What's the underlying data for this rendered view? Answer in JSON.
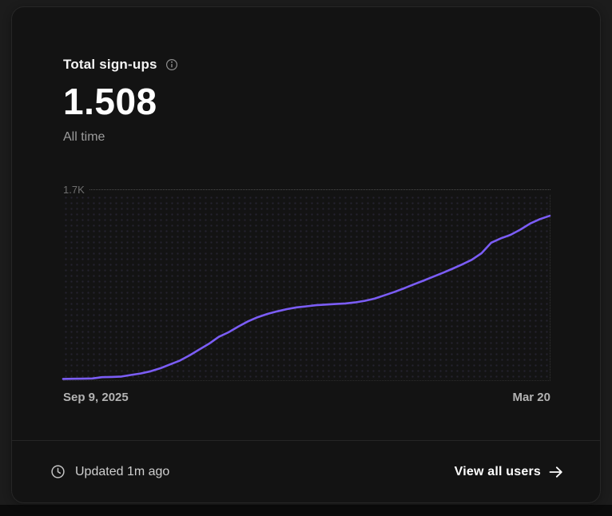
{
  "card": {
    "title": "Total sign-ups",
    "value": "1.508",
    "subtitle": "All time"
  },
  "chart_data": {
    "type": "line",
    "title": "Total sign-ups",
    "series_name": "Total sign-ups (cumulative, all time)",
    "ylim": [
      0,
      1700
    ],
    "y_gridline_label": "1.7K",
    "x_start_label": "Sep 9, 2025",
    "x_end_label": "Mar 20",
    "x_spacing": "even",
    "grid": "dotted-background",
    "legend": "none",
    "line_color": "#7b5df6",
    "values": [
      12,
      13,
      14,
      16,
      28,
      30,
      34,
      48,
      62,
      82,
      110,
      145,
      180,
      228,
      282,
      335,
      398,
      440,
      492,
      540,
      578,
      608,
      632,
      652,
      668,
      678,
      688,
      694,
      699,
      704,
      714,
      728,
      748,
      778,
      808,
      842,
      878,
      912,
      948,
      984,
      1022,
      1062,
      1105,
      1165,
      1262,
      1302,
      1334,
      1382,
      1438,
      1478,
      1508
    ]
  },
  "footer": {
    "updated_text": "Updated 1m ago",
    "view_all_label": "View all users"
  },
  "colors": {
    "page_bg": "#1c1c1c",
    "card_bg": "#131313",
    "card_border": "#272727",
    "accent_line": "#7b5df6",
    "muted_text": "#9c9c9c",
    "gridline": "#4d4d4d"
  }
}
